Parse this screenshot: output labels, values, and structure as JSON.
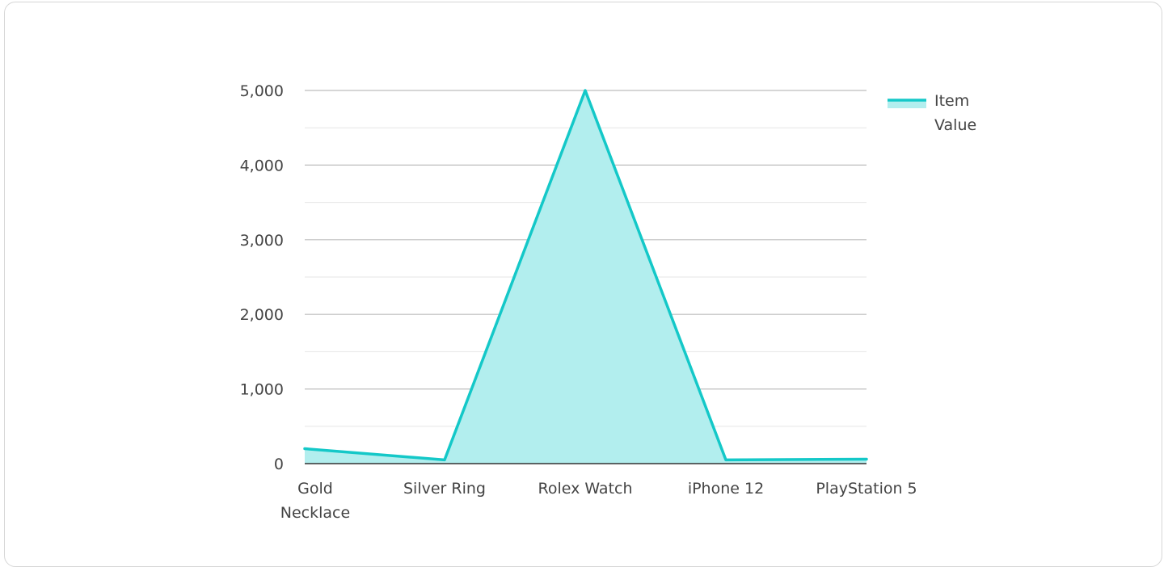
{
  "chart_data": {
    "type": "area",
    "categories": [
      "Gold Necklace",
      "Silver Ring",
      "Rolex Watch",
      "iPhone 12",
      "PlayStation 5"
    ],
    "category_label_lines": [
      [
        "Gold",
        "Necklace"
      ],
      [
        "Silver Ring"
      ],
      [
        "Rolex Watch"
      ],
      [
        "iPhone 12"
      ],
      [
        "PlayStation 5"
      ]
    ],
    "series": [
      {
        "name": "Item Value",
        "legend_lines": [
          "Item",
          "Value"
        ],
        "values": [
          200,
          50,
          5000,
          50,
          60
        ],
        "line_color": "#14c8c8",
        "fill_color": "#b2eeee"
      }
    ],
    "ylim": [
      0,
      5000
    ],
    "y_ticks": [
      {
        "value": 0,
        "label": "0"
      },
      {
        "value": 1000,
        "label": "1,000"
      },
      {
        "value": 2000,
        "label": "2,000"
      },
      {
        "value": 3000,
        "label": "3,000"
      },
      {
        "value": 4000,
        "label": "4,000"
      },
      {
        "value": 5000,
        "label": "5,000"
      }
    ],
    "grid": true,
    "legend_position": "top-right",
    "xlabel": "",
    "ylabel": "",
    "title": ""
  }
}
